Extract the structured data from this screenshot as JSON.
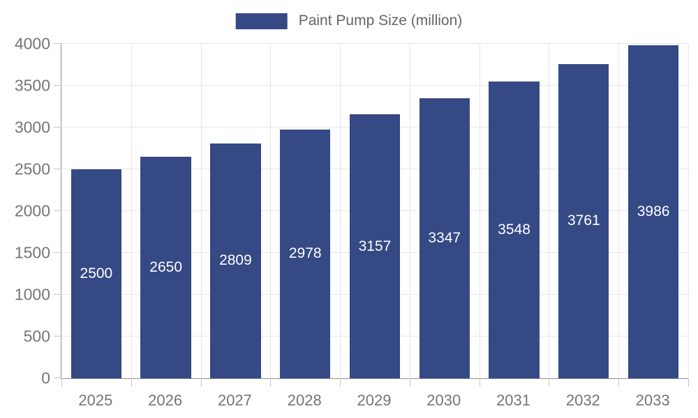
{
  "legend": {
    "label": "Paint Pump Size (million)"
  },
  "colors": {
    "bar": "#354985",
    "grid": "#e6e6e6",
    "axis": "#8c8c8c",
    "tick": "#c6c6c6",
    "tick_label": "#757575",
    "legend_text": "#666666",
    "bar_label": "#ffffff",
    "background": "#ffffff"
  },
  "chart_data": {
    "type": "bar",
    "title": "Paint Pump Size (million)",
    "series_name": "Paint Pump Size (million)",
    "categories": [
      "2025",
      "2026",
      "2027",
      "2028",
      "2029",
      "2030",
      "2031",
      "2032",
      "2033"
    ],
    "values": [
      2500,
      2650,
      2809,
      2978,
      3157,
      3347,
      3548,
      3761,
      3986
    ],
    "xlabel": "",
    "ylabel": "",
    "ylim": [
      0,
      4000
    ],
    "yticks": [
      0,
      500,
      1000,
      1500,
      2000,
      2500,
      3000,
      3500,
      4000
    ],
    "grid": true,
    "legend_position": "top-center",
    "bar_value_labels": "inside-center-white"
  }
}
